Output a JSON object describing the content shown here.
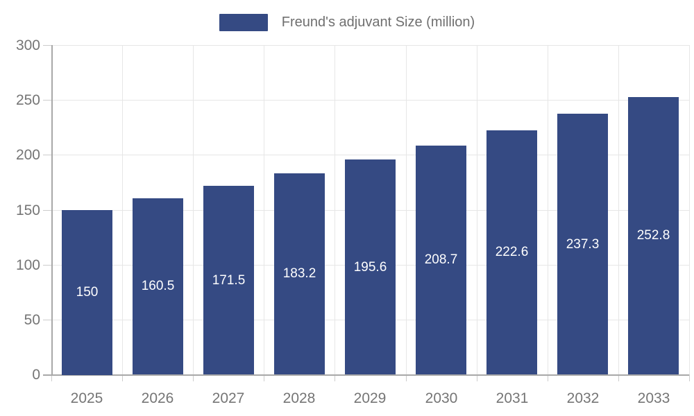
{
  "chart_data": {
    "type": "bar",
    "title": "",
    "legend": "Freund's adjuvant Size (million)",
    "categories": [
      "2025",
      "2026",
      "2027",
      "2028",
      "2029",
      "2030",
      "2031",
      "2032",
      "2033"
    ],
    "values": [
      150,
      160.5,
      171.5,
      183.2,
      195.6,
      208.7,
      222.6,
      237.3,
      252.8
    ],
    "value_labels": [
      "150",
      "160.5",
      "171.5",
      "183.2",
      "195.6",
      "208.7",
      "222.6",
      "237.3",
      "252.8"
    ],
    "xlabel": "",
    "ylabel": "",
    "ylim": [
      0,
      300
    ],
    "yticks": [
      0,
      50,
      100,
      150,
      200,
      250,
      300
    ],
    "grid": true,
    "legend_position": "top-center",
    "colors": {
      "bar": "#354a83",
      "bar_value_text": "#ffffff",
      "axis_text": "#757575",
      "legend_text": "#6f6f6f",
      "grid_line": "#e6e6e6",
      "axis_line": "#a8a8a8",
      "tick_line": "#cccccc"
    }
  }
}
